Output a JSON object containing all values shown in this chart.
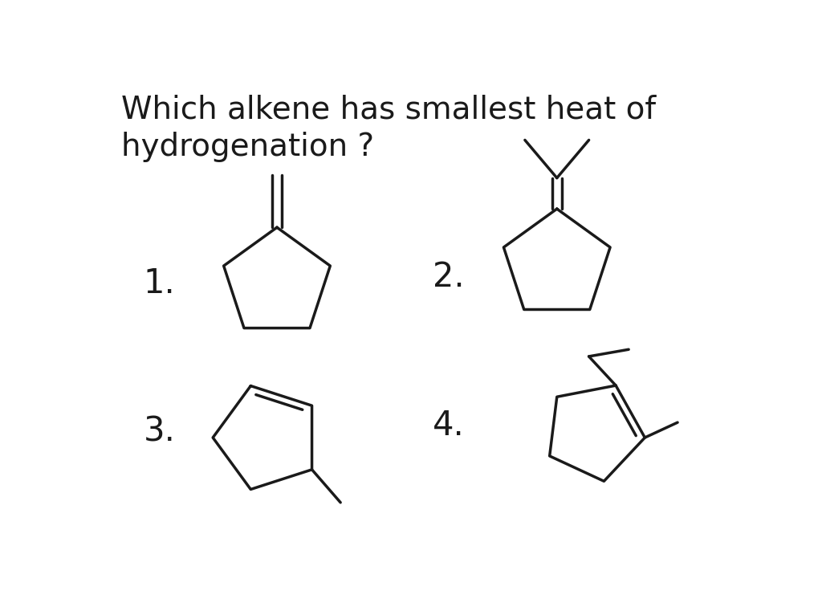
{
  "background_color": "#ffffff",
  "line_color": "#1a1a1a",
  "line_width": 2.5,
  "label_fontsize": 30,
  "title_fontsize": 28,
  "labels": [
    "1.",
    "2.",
    "3.",
    "4."
  ]
}
